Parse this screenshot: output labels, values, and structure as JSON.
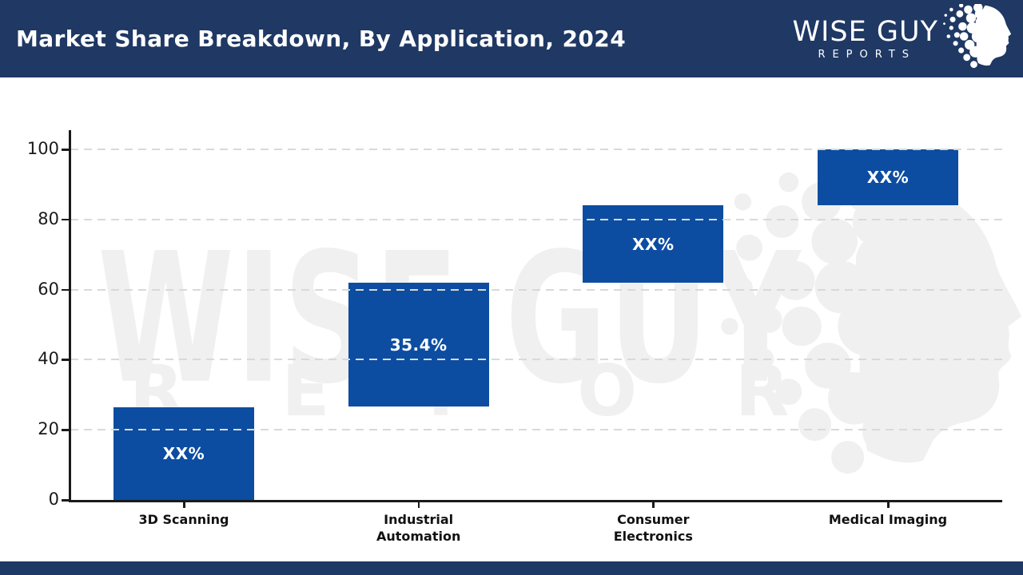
{
  "header": {
    "title": "Market Share Breakdown, By Application, 2024",
    "logo": {
      "wordmark": "WISE GUY",
      "reports_label": "REPORTS",
      "head_icon": "dotted-head-profile-icon"
    }
  },
  "watermark": {
    "wordmark": "WISE GUY",
    "reports_label": "R E P O R T S",
    "head_icon": "dotted-head-profile-icon"
  },
  "colors": {
    "navy": "#1f3864",
    "bar_blue": "#0c4da2",
    "grid_gray": "#d9d9d9",
    "axis_black": "#1a1a1a",
    "watermark_gray": "#f0f0f1",
    "bar_label_white": "#ffffff"
  },
  "chart_data": {
    "type": "bar",
    "subtype": "floating-waterfall",
    "title": "Market Share Breakdown, By Application, 2024",
    "xlabel": "",
    "ylabel": "",
    "categories": [
      "3D Scanning",
      "Industrial\nAutomation",
      "Consumer\nElectronics",
      "Medical Imaging"
    ],
    "segments": [
      {
        "category": "3D Scanning",
        "start": 0,
        "end": 26.5,
        "label": "XX%"
      },
      {
        "category": "Industrial Automation",
        "start": 26.6,
        "end": 62.0,
        "label": "35.4%"
      },
      {
        "category": "Consumer Electronics",
        "start": 62.0,
        "end": 84.0,
        "label": "XX%"
      },
      {
        "category": "Medical Imaging",
        "start": 84.0,
        "end": 100.0,
        "label": "XX%"
      }
    ],
    "ylim": [
      0,
      100
    ],
    "yticks": [
      0,
      20,
      40,
      60,
      80,
      100
    ],
    "grid": "horizontal-dashed",
    "legend": "none"
  }
}
